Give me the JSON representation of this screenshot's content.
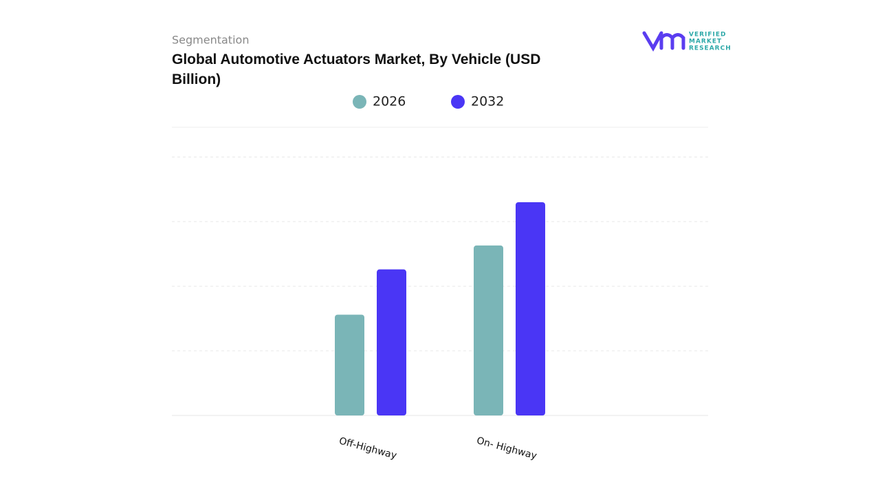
{
  "chart_data": {
    "type": "bar",
    "subtitle": "Segmentation",
    "title": "Global Automotive Actuators Market, By Vehicle (USD Billion)",
    "logo": [
      "VERIFIED",
      "MARKET",
      "RESEARCH"
    ],
    "categories": [
      "Off-Highway",
      "On- Highway"
    ],
    "series": [
      {
        "name": "2026",
        "color": "#7ab5b7",
        "values": [
          1.56,
          2.63
        ]
      },
      {
        "name": "2032",
        "color": "#4a36f5",
        "values": [
          2.26,
          3.3
        ]
      }
    ],
    "ylim": [
      0,
      4.46
    ],
    "yticks": [
      0,
      1,
      2,
      3,
      4
    ],
    "grid": true
  }
}
